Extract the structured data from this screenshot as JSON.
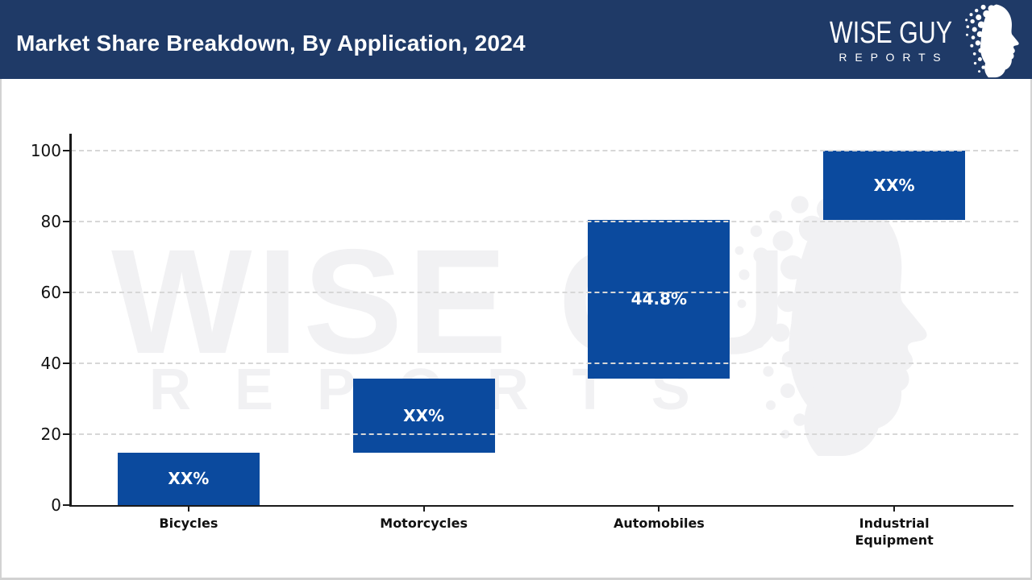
{
  "header": {
    "title": "Market Share Breakdown, By Application, 2024",
    "logo_text": "WISE GUY",
    "logo_subtext": "R E P O R T S",
    "bg_color": "#1f3a67"
  },
  "watermark": {
    "text": "WISE GU",
    "subtext": "R E P O R T S"
  },
  "chart_data": {
    "type": "bar",
    "subtype": "waterfall",
    "title": "Market Share Breakdown, By Application, 2024",
    "categories": [
      "Bicycles",
      "Motorcycles",
      "Automobiles",
      "Industrial Equipment"
    ],
    "xtick_display": [
      "Bicycles",
      "Motorcycles",
      "Automobiles",
      "Industrial\nEquipment"
    ],
    "segments": [
      {
        "category": "Bicycles",
        "start": 0,
        "end": 14.8,
        "value": 14.8,
        "label": "XX%"
      },
      {
        "category": "Motorcycles",
        "start": 14.8,
        "end": 35.7,
        "value": 20.9,
        "label": "XX%"
      },
      {
        "category": "Automobiles",
        "start": 35.7,
        "end": 80.5,
        "value": 44.8,
        "label": "44.8%"
      },
      {
        "category": "Industrial Equipment",
        "start": 80.5,
        "end": 100,
        "value": 19.5,
        "label": "XX%"
      }
    ],
    "ylim": [
      0,
      100
    ],
    "yticks": [
      0,
      20,
      40,
      60,
      80,
      100
    ],
    "xlabel": "",
    "ylabel": "",
    "legend": null,
    "grid": "y-dashed",
    "bar_color": "#0b4a9e",
    "bar_label_color": "#ffffff"
  }
}
